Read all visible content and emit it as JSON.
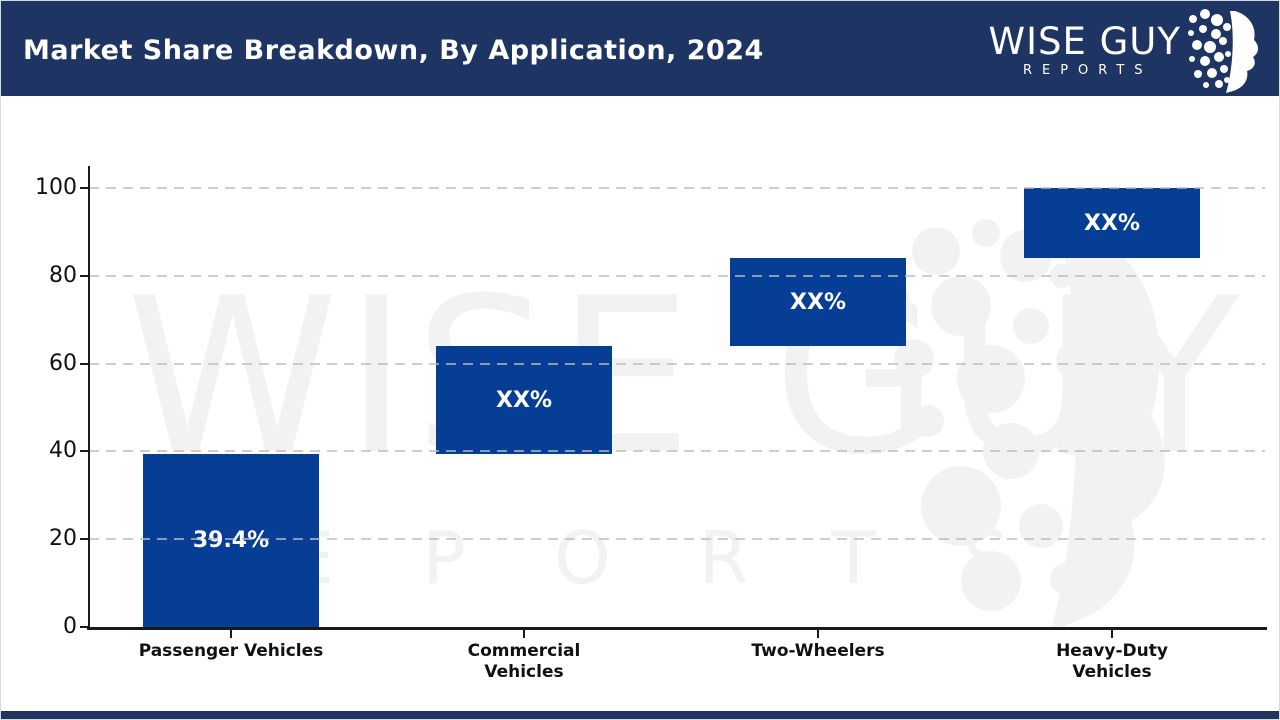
{
  "header": {
    "title": "Market Share Breakdown, By Application, 2024",
    "logo": {
      "line1": "WISE GUY",
      "line2": "REPORTS"
    }
  },
  "watermark": {
    "line1": "WISE GUY",
    "line2": "REPORTS"
  },
  "colors": {
    "header_bg": "#1e3462",
    "bar": "#063e96",
    "bar_label": "#ffffff",
    "gridline": "#bcbcbc",
    "watermark": "#f2f2f2"
  },
  "chart_data": {
    "type": "bar",
    "subtype": "floating-waterfall",
    "title": "Market Share Breakdown, By Application, 2024",
    "categories": [
      "Passenger Vehicles",
      "Commercial Vehicles",
      "Two-Wheelers",
      "Heavy-Duty Vehicles"
    ],
    "category_lines": [
      [
        "Passenger Vehicles"
      ],
      [
        "Commercial",
        "Vehicles"
      ],
      [
        "Two-Wheelers"
      ],
      [
        "Heavy-Duty",
        "Vehicles"
      ]
    ],
    "series": [
      {
        "name": "Market Share %",
        "segments": [
          {
            "category": "Passenger Vehicles",
            "start": 0,
            "end": 39.4,
            "label": "39.4%"
          },
          {
            "category": "Commercial Vehicles",
            "start": 39.4,
            "end": 64,
            "label": "XX%"
          },
          {
            "category": "Two-Wheelers",
            "start": 64,
            "end": 84,
            "label": "XX%"
          },
          {
            "category": "Heavy-Duty Vehicles",
            "start": 84,
            "end": 100,
            "label": "XX%"
          }
        ]
      }
    ],
    "xlabel": "",
    "ylabel": "",
    "ylim": [
      0,
      100
    ],
    "yticks": [
      0,
      20,
      40,
      60,
      80,
      100
    ],
    "grid": "horizontal-dashed-over-bars",
    "legend": "none"
  }
}
